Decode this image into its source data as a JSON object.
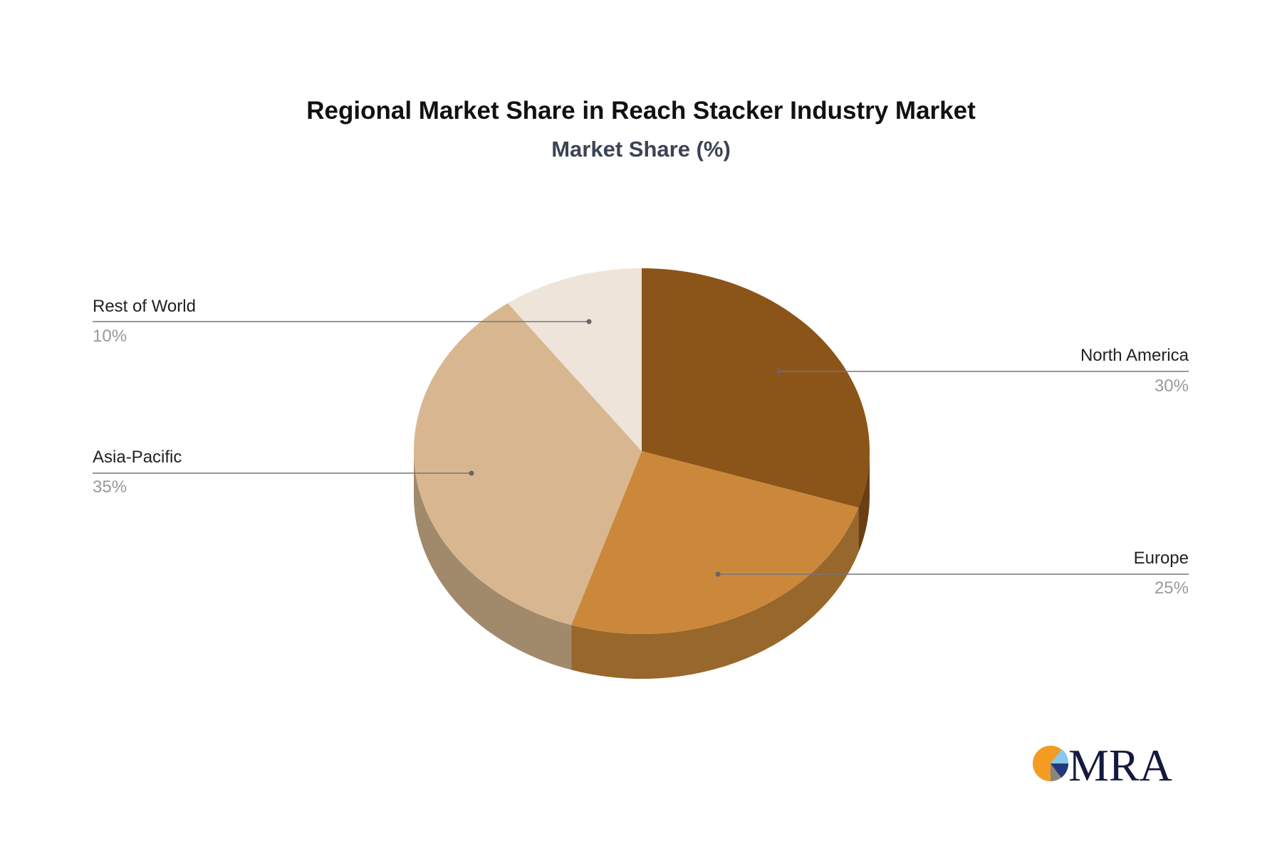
{
  "chart_data": {
    "type": "pie",
    "title": "Regional Market Share in Reach Stacker Industry Market",
    "subtitle": "Market Share (%)",
    "three_d": true,
    "slices": [
      {
        "label": "North America",
        "value": 30,
        "value_label": "30%",
        "color": "#8B5418",
        "side_color": "#6A3F11"
      },
      {
        "label": "Europe",
        "value": 25,
        "value_label": "25%",
        "color": "#CB883B",
        "side_color": "#98672C"
      },
      {
        "label": "Asia-Pacific",
        "value": 35,
        "value_label": "35%",
        "color": "#D8B790",
        "side_color": "#A1896C"
      },
      {
        "label": "Rest of World",
        "value": 10,
        "value_label": "10%",
        "color": "#EFE4DA",
        "side_color": "#BEB3A9"
      }
    ]
  },
  "logo": {
    "text": "MRA",
    "colors": [
      "#F39C23",
      "#86C8F0",
      "#1E3A7A",
      "#8A8580",
      "#14193F"
    ]
  }
}
